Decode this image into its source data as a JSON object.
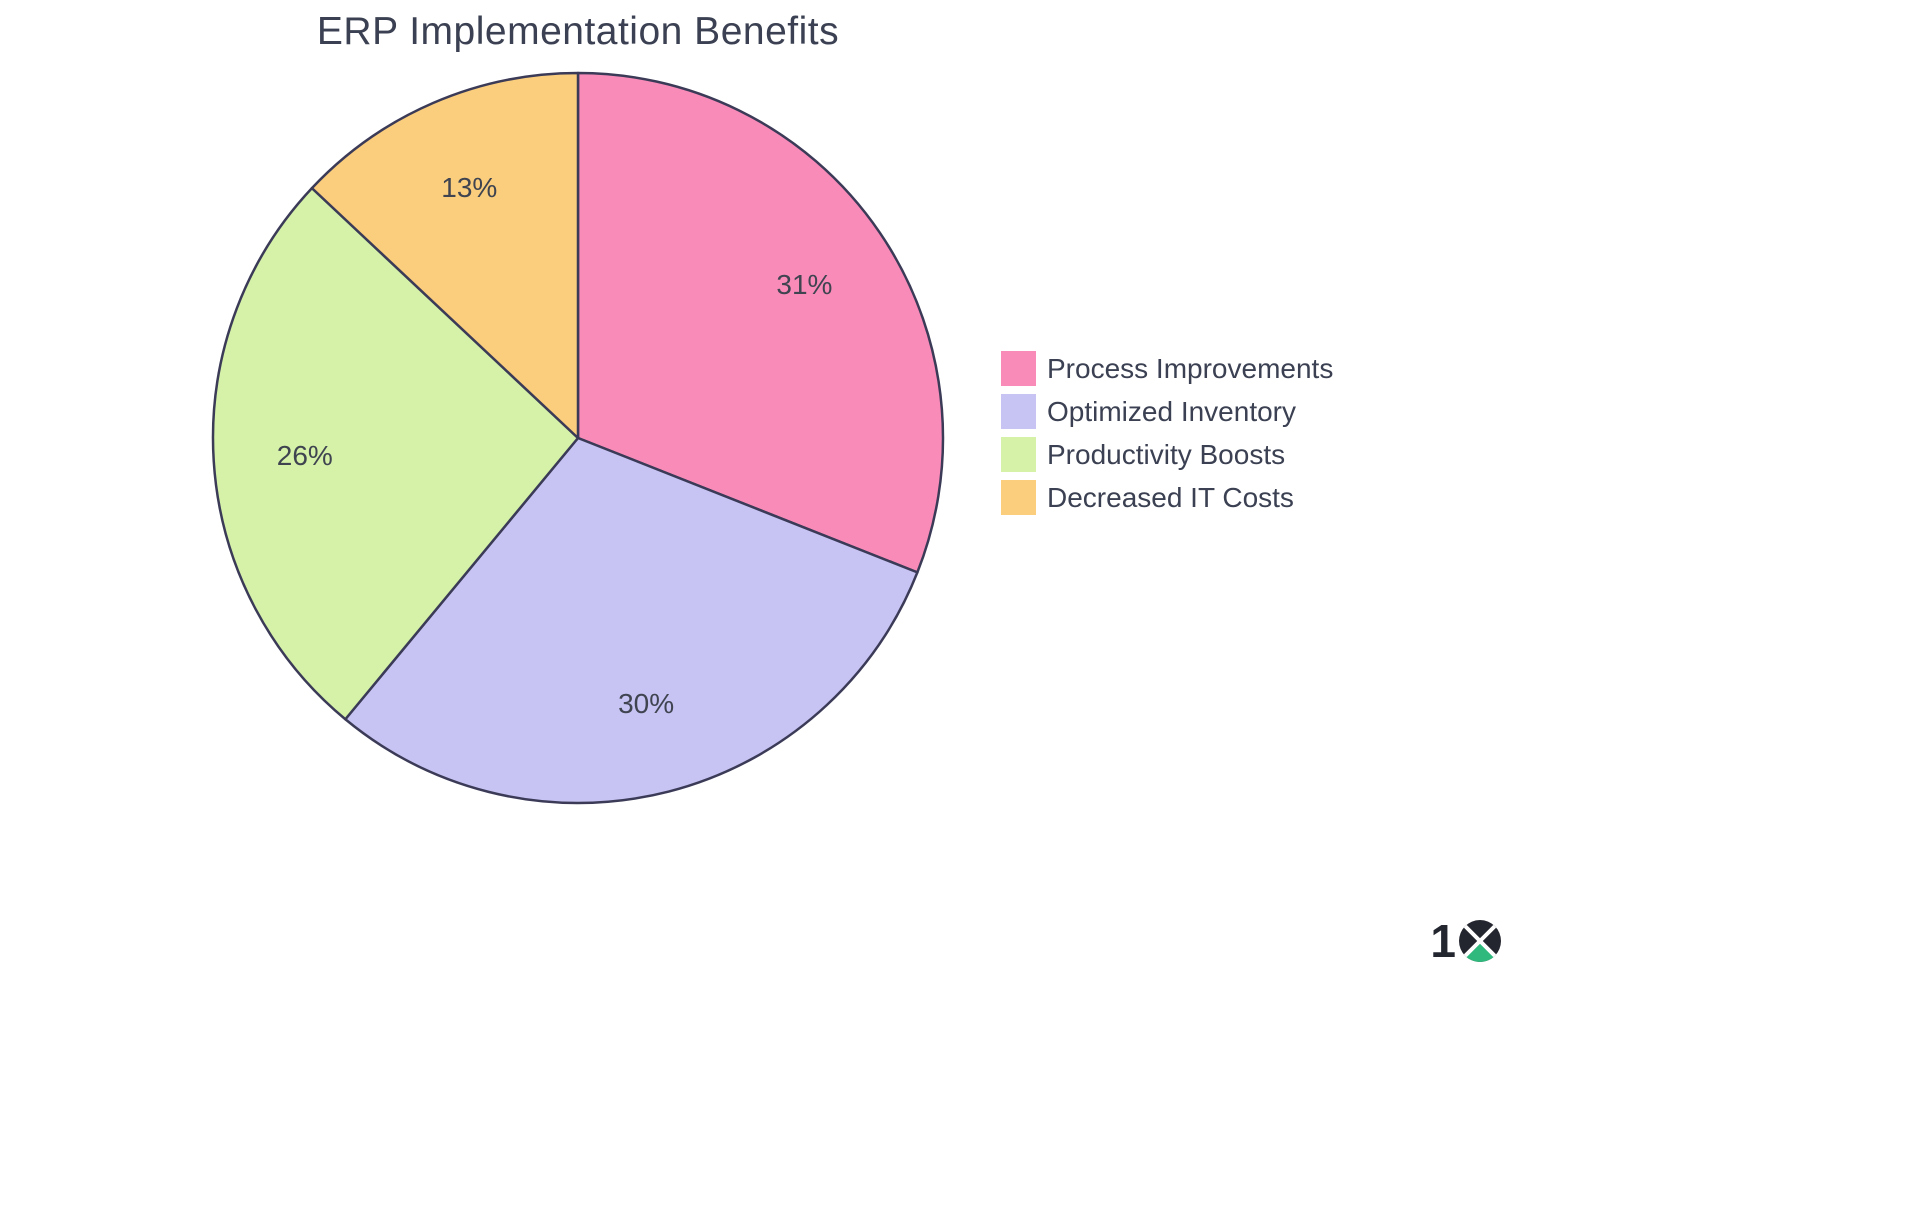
{
  "chart_data": {
    "type": "pie",
    "title": "ERP Implementation Benefits",
    "labels": [
      "Process Improvements",
      "Optimized Inventory",
      "Productivity Boosts",
      "Decreased IT Costs"
    ],
    "values": [
      31,
      30,
      26,
      13
    ],
    "value_labels": [
      "31%",
      "30%",
      "26%",
      "13%"
    ],
    "colors": [
      "#f98bb9",
      "#c7c4f3",
      "#d5f2a8",
      "#fbce7d"
    ],
    "border_color": "#3b3b58",
    "start_angle_deg": 0,
    "direction": "clockwise",
    "legend_position": "right"
  },
  "legend": {
    "items": [
      {
        "label": "Process Improvements",
        "color": "#f98bb9"
      },
      {
        "label": "Optimized Inventory",
        "color": "#c7c4f3"
      },
      {
        "label": "Productivity Boosts",
        "color": "#d5f2a8"
      },
      {
        "label": "Decreased IT Costs",
        "color": "#fbce7d"
      }
    ]
  },
  "watermark": {
    "text": "1",
    "icon": "circle-x-logo-icon",
    "icon_dark_color": "#23262f",
    "icon_green_color": "#2fb97c"
  }
}
